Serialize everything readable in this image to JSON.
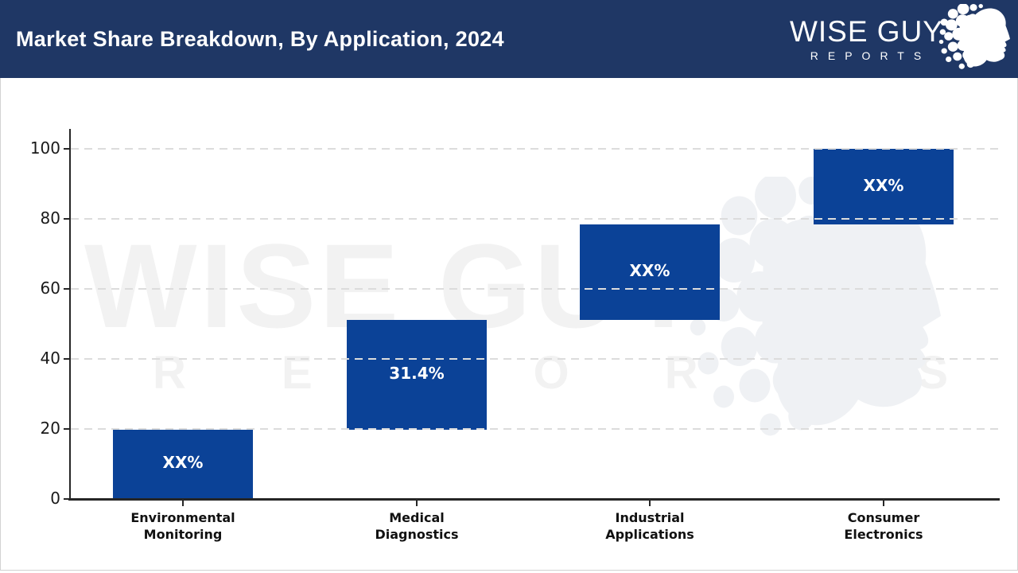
{
  "header": {
    "title": "Market Share Breakdown, By Application, 2024",
    "logo": {
      "line1": "WISE GUY",
      "line2": "REPORTS"
    }
  },
  "watermark": {
    "line1": "WISE GUY",
    "line2": "R E P O R T S"
  },
  "chart_data": {
    "type": "bar",
    "subtype": "waterfall",
    "title": "Market Share Breakdown, By Application, 2024",
    "categories": [
      "Environmental Monitoring",
      "Medical Diagnostics",
      "Industrial Applications",
      "Consumer Electronics"
    ],
    "categories_lines": [
      [
        "Environmental",
        "Monitoring"
      ],
      [
        "Medical",
        "Diagnostics"
      ],
      [
        "Industrial",
        "Applications"
      ],
      [
        "Consumer",
        "Electronics"
      ]
    ],
    "values": [
      19.6,
      31.4,
      27.4,
      21.6
    ],
    "segments": [
      [
        0,
        19.6
      ],
      [
        19.6,
        51.0
      ],
      [
        51.0,
        78.4
      ],
      [
        78.4,
        100
      ]
    ],
    "bar_labels": [
      "XX%",
      "31.4%",
      "XX%",
      "XX%"
    ],
    "xlabel": "",
    "ylabel": "",
    "ylim": [
      0,
      100
    ],
    "yticks": [
      0,
      20,
      40,
      60,
      80,
      100
    ],
    "grid": "horizontal-dashed",
    "legend": "none",
    "colors": {
      "bar": "#0b4297",
      "grid": "#dcdcdc",
      "axis": "#262626",
      "bar_label": "#ffffff",
      "header_bg": "#1f3765",
      "watermark": "#f2f2f2"
    }
  }
}
